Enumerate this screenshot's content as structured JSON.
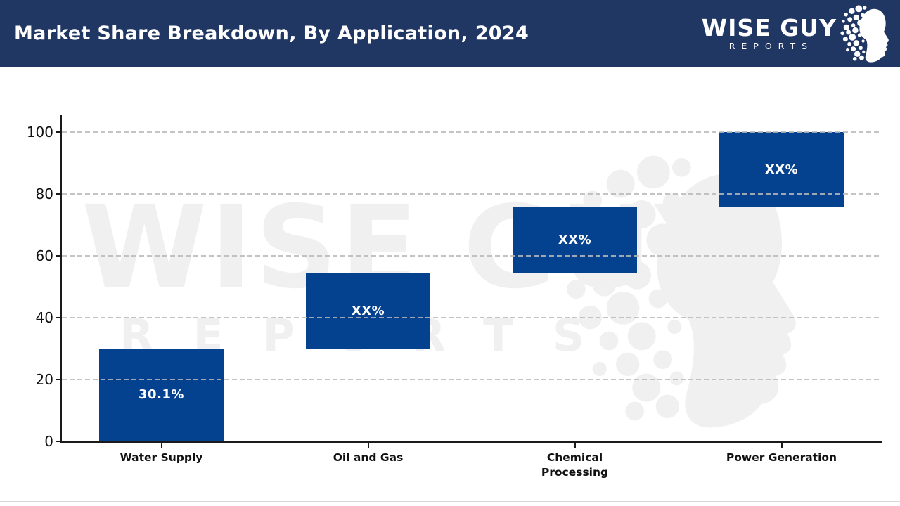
{
  "header": {
    "title": "Market Share Breakdown, By Application, 2024",
    "logo": {
      "line1": "WISE GUY",
      "line2": "REPORTS"
    }
  },
  "watermark": {
    "line1": "WISE GUY",
    "line2": "REPORTS"
  },
  "chart_data": {
    "type": "bar",
    "subtype": "waterfall",
    "title": "Market Share Breakdown, By Application, 2024",
    "categories": [
      "Water Supply",
      "Oil and Gas",
      "Chemical Processing",
      "Power Generation"
    ],
    "segments": [
      {
        "category": "Water Supply",
        "start": 0,
        "end": 30.1,
        "label": "30.1%"
      },
      {
        "category": "Oil and Gas",
        "start": 30.1,
        "end": 54.4,
        "label": "XX%"
      },
      {
        "category": "Chemical Processing",
        "start": 54.5,
        "end": 75.9,
        "label": "XX%"
      },
      {
        "category": "Power Generation",
        "start": 75.9,
        "end": 100,
        "label": "XX%"
      }
    ],
    "values_masked": [
      "30.1%",
      "XX%",
      "XX%",
      "XX%"
    ],
    "xlabel": "",
    "ylabel": "",
    "ylim": [
      0,
      105
    ],
    "yticks": [
      0,
      20,
      40,
      60,
      80,
      100
    ],
    "grid": "dashed-horizontal",
    "legend": "none",
    "bar_color": "#04418f"
  },
  "colors": {
    "header_bg": "#203663",
    "bar": "#04418f",
    "grid": "#bababa",
    "axis": "#1a1a1a",
    "watermark": "#f0f0f0",
    "title_text": "#ffffff",
    "bottom_rule": "#d8d8d8"
  }
}
